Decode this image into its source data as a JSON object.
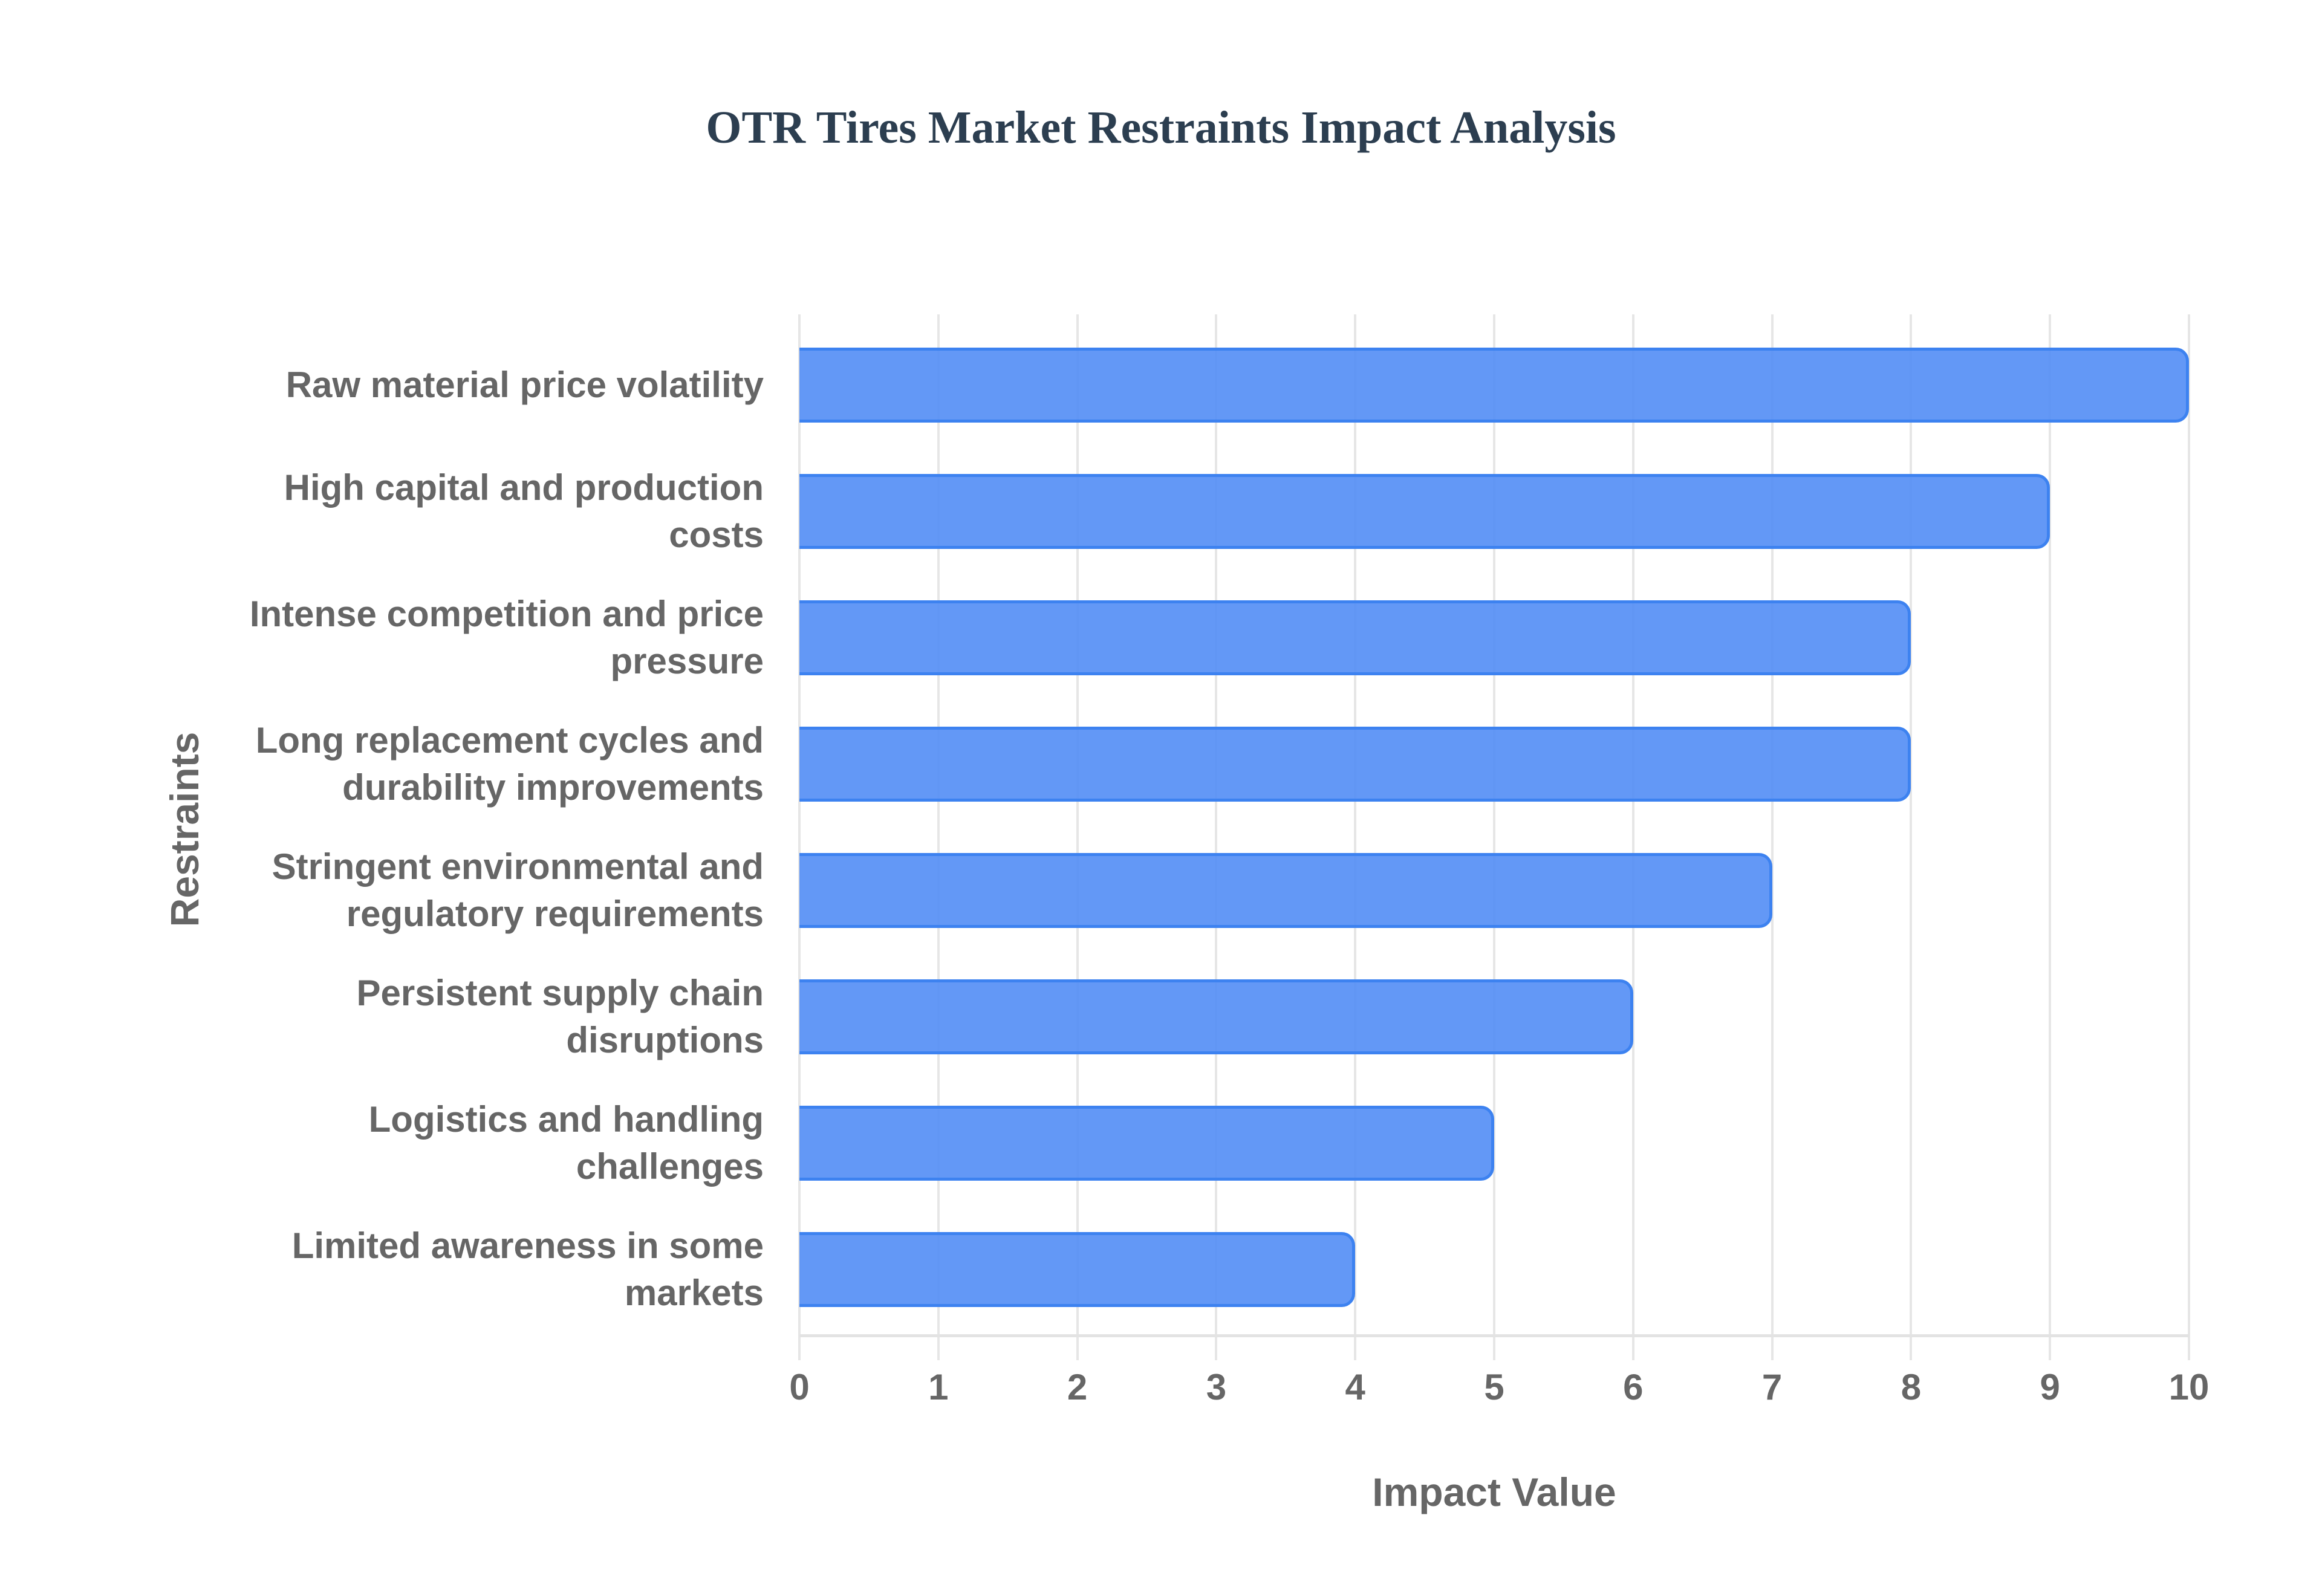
{
  "chart_data": {
    "type": "bar",
    "orientation": "horizontal",
    "title": "OTR Tires Market Restraints Impact Analysis",
    "xlabel": "Impact Value",
    "ylabel": "Restraints",
    "xlim": [
      0,
      10
    ],
    "x_ticks": [
      "0",
      "1",
      "2",
      "3",
      "4",
      "5",
      "6",
      "7",
      "8",
      "9",
      "10"
    ],
    "grid": true,
    "legend": null,
    "bar_color": "#5b95f5",
    "bar_border_color": "#3d82f0",
    "categories": [
      "Raw material price volatility",
      "High capital and production costs",
      "Intense competition and price pressure",
      "Long replacement cycles and durability improvements",
      "Stringent environmental and regulatory requirements",
      "Persistent supply chain disruptions",
      "Logistics and handling challenges",
      "Limited awareness in some markets"
    ],
    "values": [
      10,
      9,
      8,
      8,
      7,
      6,
      5,
      4
    ]
  },
  "labels": {
    "title": "OTR Tires Market Restraints Impact Analysis",
    "xlabel": "Impact Value",
    "ylabel": "Restraints",
    "categories": [
      [
        "Raw material price volatility"
      ],
      [
        "High capital and production",
        "costs"
      ],
      [
        "Intense competition and price",
        "pressure"
      ],
      [
        "Long replacement cycles and",
        "durability improvements"
      ],
      [
        "Stringent environmental and",
        "regulatory requirements"
      ],
      [
        "Persistent supply chain",
        "disruptions"
      ],
      [
        "Logistics and handling",
        "challenges"
      ],
      [
        "Limited awareness in some",
        "markets"
      ]
    ]
  }
}
